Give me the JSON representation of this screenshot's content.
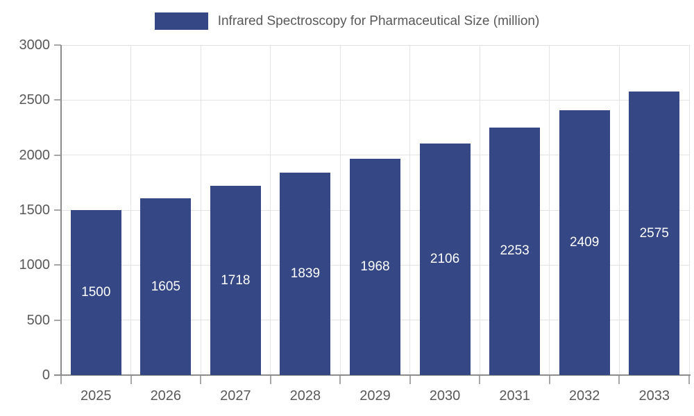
{
  "legend": {
    "label": "Infrared Spectroscopy for Pharmaceutical Size (million)",
    "swatch_color": "#354885"
  },
  "chart_data": {
    "type": "bar",
    "title": "",
    "xlabel": "",
    "ylabel": "",
    "categories": [
      "2025",
      "2026",
      "2027",
      "2028",
      "2029",
      "2030",
      "2031",
      "2032",
      "2033"
    ],
    "series": [
      {
        "name": "Infrared Spectroscopy for Pharmaceutical Size (million)",
        "values": [
          1500,
          1605,
          1718,
          1839,
          1968,
          2106,
          2253,
          2409,
          2575
        ]
      }
    ],
    "value_labels_shown": true,
    "ylim": [
      0,
      3000
    ],
    "yticks": [
      0,
      500,
      1000,
      1500,
      2000,
      2500,
      3000
    ],
    "grid": true,
    "legend_position": "top",
    "colors": {
      "bar": "#354885",
      "value_label": "#ffffff",
      "axis_text": "#595959",
      "axis_line": "#8c8c8c",
      "gridline": "#e3e3e3",
      "tick": "#a6a6a6",
      "background": "#ffffff"
    }
  }
}
